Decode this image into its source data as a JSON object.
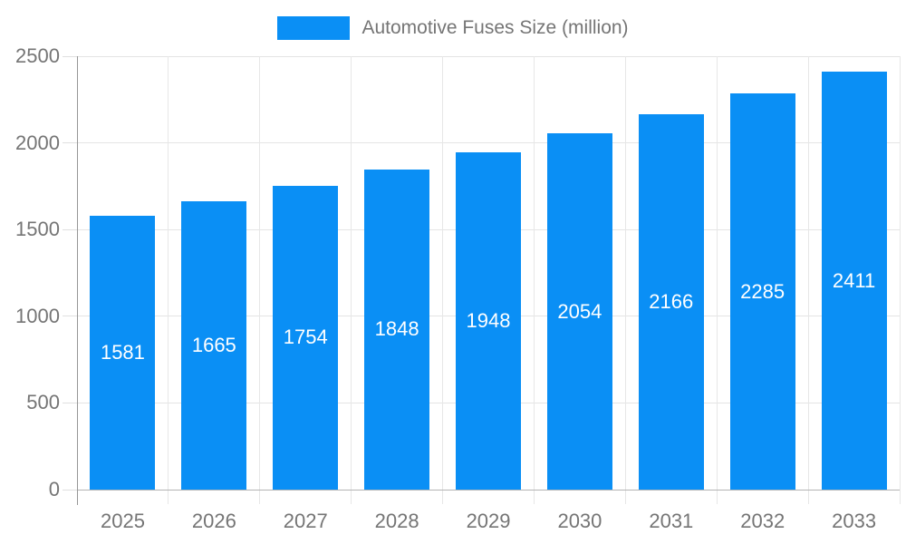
{
  "chart_data": {
    "type": "bar",
    "categories": [
      "2025",
      "2026",
      "2027",
      "2028",
      "2029",
      "2030",
      "2031",
      "2032",
      "2033"
    ],
    "series": [
      {
        "name": "Automotive Fuses Size (million)",
        "values": [
          1581,
          1665,
          1754,
          1848,
          1948,
          2054,
          2166,
          2285,
          2411
        ],
        "color": "#0a8ff5"
      }
    ],
    "value_labels": {
      "show": true,
      "color": "#ffffff",
      "position": "inside-center"
    },
    "xlabel": "",
    "ylabel": "",
    "ylim": [
      0,
      2500
    ],
    "yticks": [
      0,
      500,
      1000,
      1500,
      2000,
      2500
    ],
    "grid": {
      "horizontal": true,
      "vertical": true
    },
    "legend_position": "top"
  }
}
